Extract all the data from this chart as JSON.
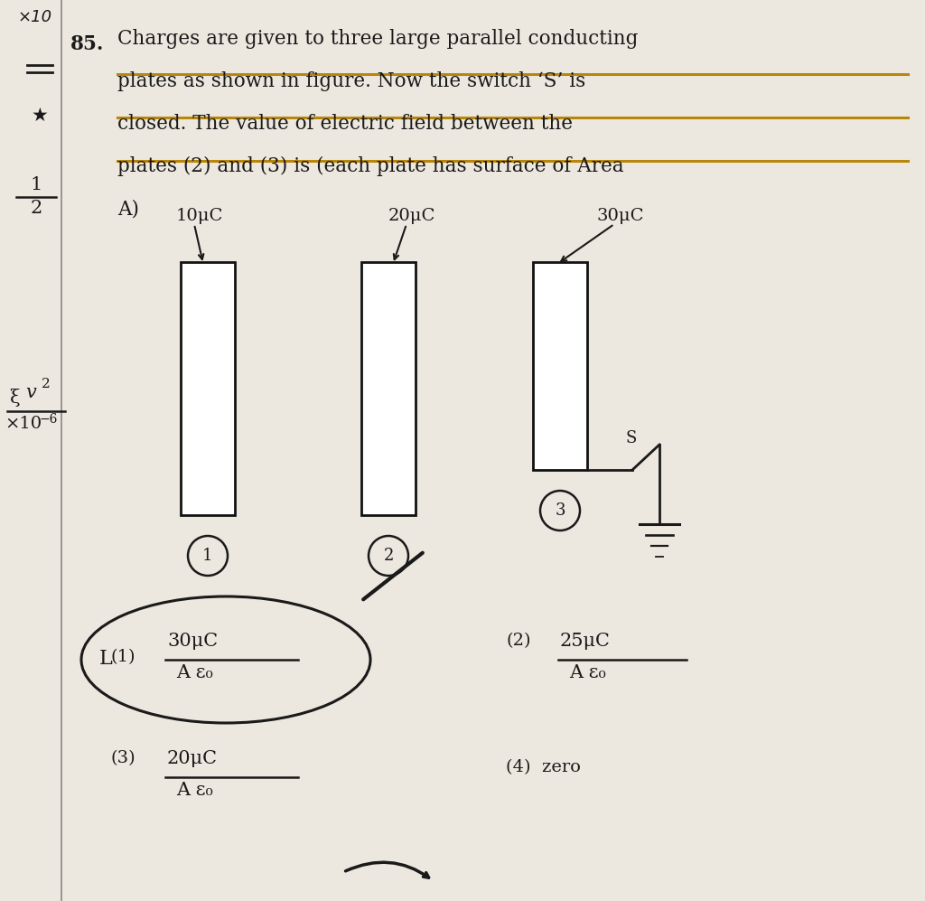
{
  "bg_color": "#ede8df",
  "text_color": "#1a1a1a",
  "question_num": "85.",
  "question_lines": [
    "Charges are given to three large parallel conducting",
    "plates as shown in figure. Now the switch ‘S’ is",
    "closed. The value of electric field between the",
    "plates (2) and (3) is (each plate has surface of Area",
    "A)"
  ],
  "plate_labels": [
    "10μC",
    "20μC",
    "30μC"
  ],
  "plate_nums": [
    "1",
    "2",
    "3"
  ],
  "switch_label": "S",
  "opt1_num": "30μC",
  "opt1_den": "A ε₀",
  "opt2_num": "25μC",
  "opt2_den": "A ε₀",
  "opt3_num": "20μC",
  "opt3_den": "A ε₀",
  "opt4_text": "zero",
  "underline_color": "#b8860b",
  "plate_color": "white",
  "plate_edge": "#111111"
}
